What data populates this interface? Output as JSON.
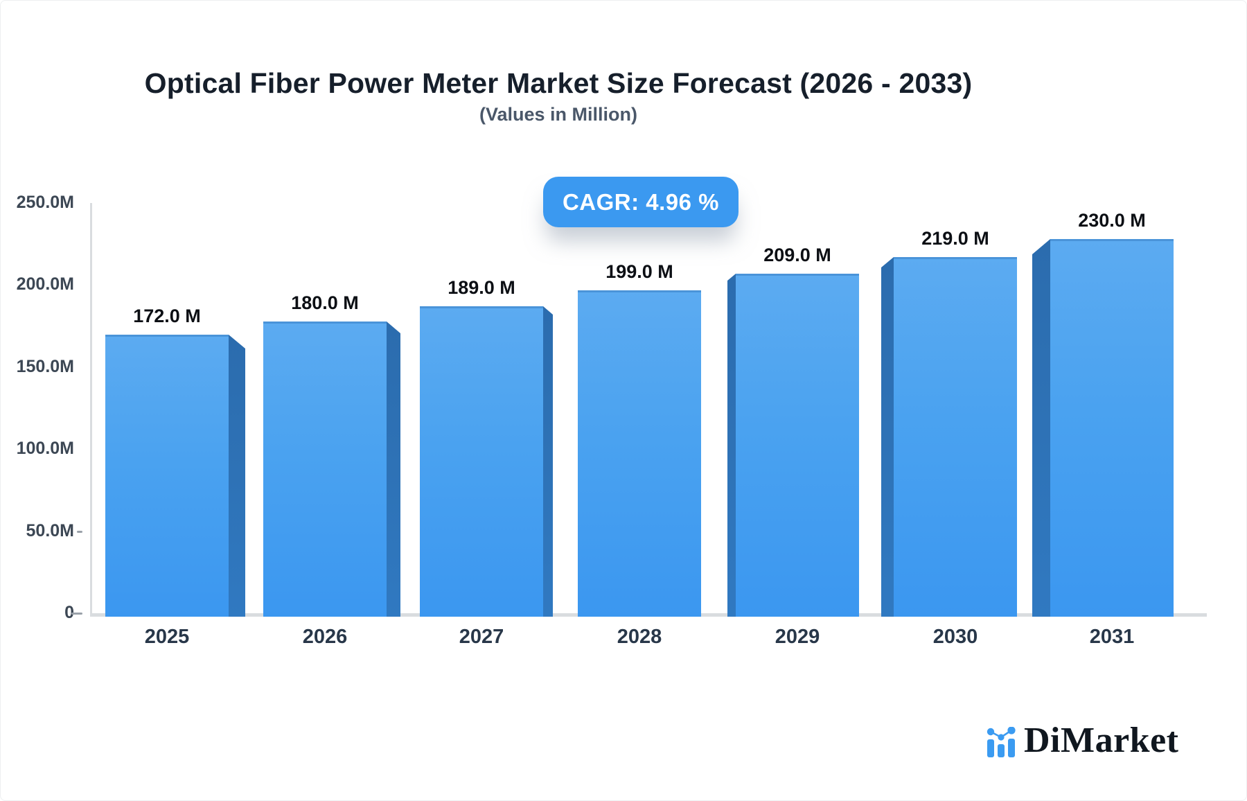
{
  "header": {
    "title": "Optical Fiber Power Meter Market Size Forecast (2026 - 2033)",
    "subtitle": "(Values in Million)"
  },
  "badge": {
    "label": "CAGR: 4.96 %"
  },
  "chart_data": {
    "type": "bar",
    "title": "Optical Fiber Power Meter Market Size Forecast (2026 - 2033)",
    "subtitle": "(Values in Million)",
    "categories": [
      "2025",
      "2026",
      "2027",
      "2028",
      "2029",
      "2030",
      "2031"
    ],
    "values": [
      172,
      180,
      189,
      199,
      209,
      219,
      230
    ],
    "value_labels": [
      "172.0 M",
      "180.0 M",
      "189.0 M",
      "199.0 M",
      "209.0 M",
      "219.0 M",
      "230.0 M"
    ],
    "y_tick_values": [
      250,
      200,
      150,
      100,
      50,
      0
    ],
    "y_tick_labels": [
      "250.0M",
      "200.0M",
      "150.0M",
      "100.0M",
      "50.0M",
      "0"
    ],
    "ylim": [
      0,
      250
    ],
    "xlabel": "",
    "ylabel": "",
    "grid": false,
    "legend": false,
    "colors": {
      "bar_face_top": "#5cabf1",
      "bar_face_bottom": "#3b97f0",
      "bar_side": "#2e72b6",
      "axis": "#d9dcdf",
      "badge_background": "#3b99f0",
      "badge_text": "#ffffff"
    }
  },
  "logo": {
    "brand": "DiMarket",
    "mark_color": "#3b9bf1"
  }
}
